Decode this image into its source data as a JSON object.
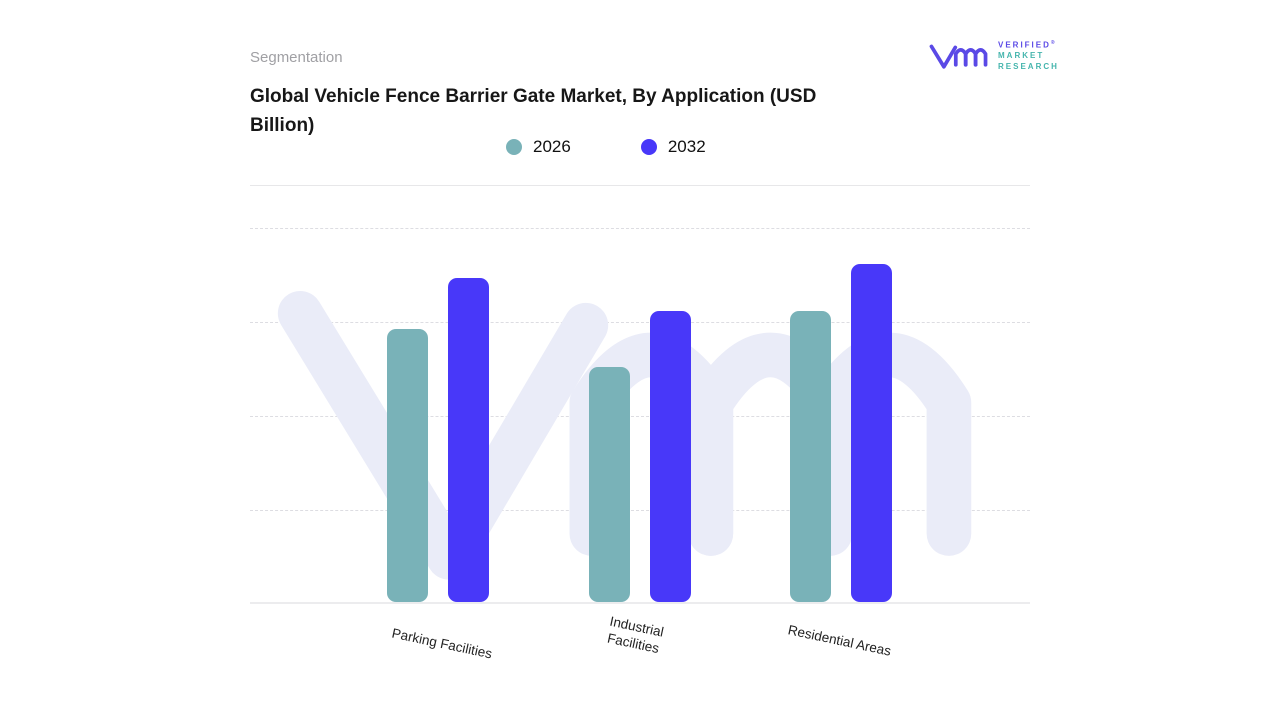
{
  "header": {
    "eyebrow": "Segmentation",
    "title": "Global Vehicle Fence Barrier Gate Market, By Application (USD Billion)"
  },
  "logo": {
    "line1": "VERIFIED",
    "registered_mark": "®",
    "line2": "MARKET",
    "line3": "RESEARCH",
    "mark_color": "#5a49e6",
    "line1_color": "#5a49e6",
    "line23_color": "#45b5ad"
  },
  "watermark": {
    "name": "vmr-watermark",
    "color": "#eaecf8"
  },
  "chart_data": {
    "type": "bar",
    "title": "Global Vehicle Fence Barrier Gate Market, By Application (USD Billion)",
    "value_unit": "USD Billion",
    "categories": [
      "Parking Facilities",
      "Industrial Facilities",
      "Residential Areas"
    ],
    "series": [
      {
        "name": "2026",
        "color": "#79b2b8",
        "values": [
          2.9,
          2.5,
          3.1
        ]
      },
      {
        "name": "2032",
        "color": "#4838f9",
        "values": [
          3.45,
          3.1,
          3.6
        ]
      }
    ],
    "ylim": [
      0,
      4
    ],
    "y_axis_labels_visible": false,
    "grid": "horizontal-dashed",
    "legend_position": "top-center"
  }
}
